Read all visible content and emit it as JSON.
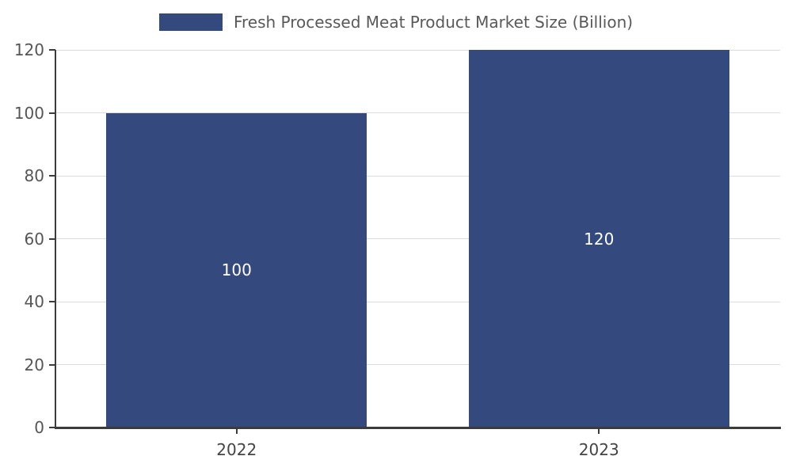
{
  "chart_data": {
    "type": "bar",
    "title": "Fresh Processed Meat Product Market Size (Billion)",
    "categories": [
      "2022",
      "2023"
    ],
    "values": [
      100,
      120
    ],
    "data_labels": [
      "100",
      "120"
    ],
    "xlabel": "",
    "ylabel": "",
    "ylim": [
      0,
      120
    ],
    "yticks": [
      0,
      20,
      40,
      60,
      80,
      100,
      120
    ],
    "grid": true,
    "legend_position": "top-center",
    "colors": {
      "bar": "#344a7e",
      "bar_label": "#ffffff",
      "grid": "#dcdcdc",
      "axis": "#3b3b3b",
      "tick_label": "#555555",
      "legend_text": "#595959",
      "background": "#ffffff"
    }
  }
}
